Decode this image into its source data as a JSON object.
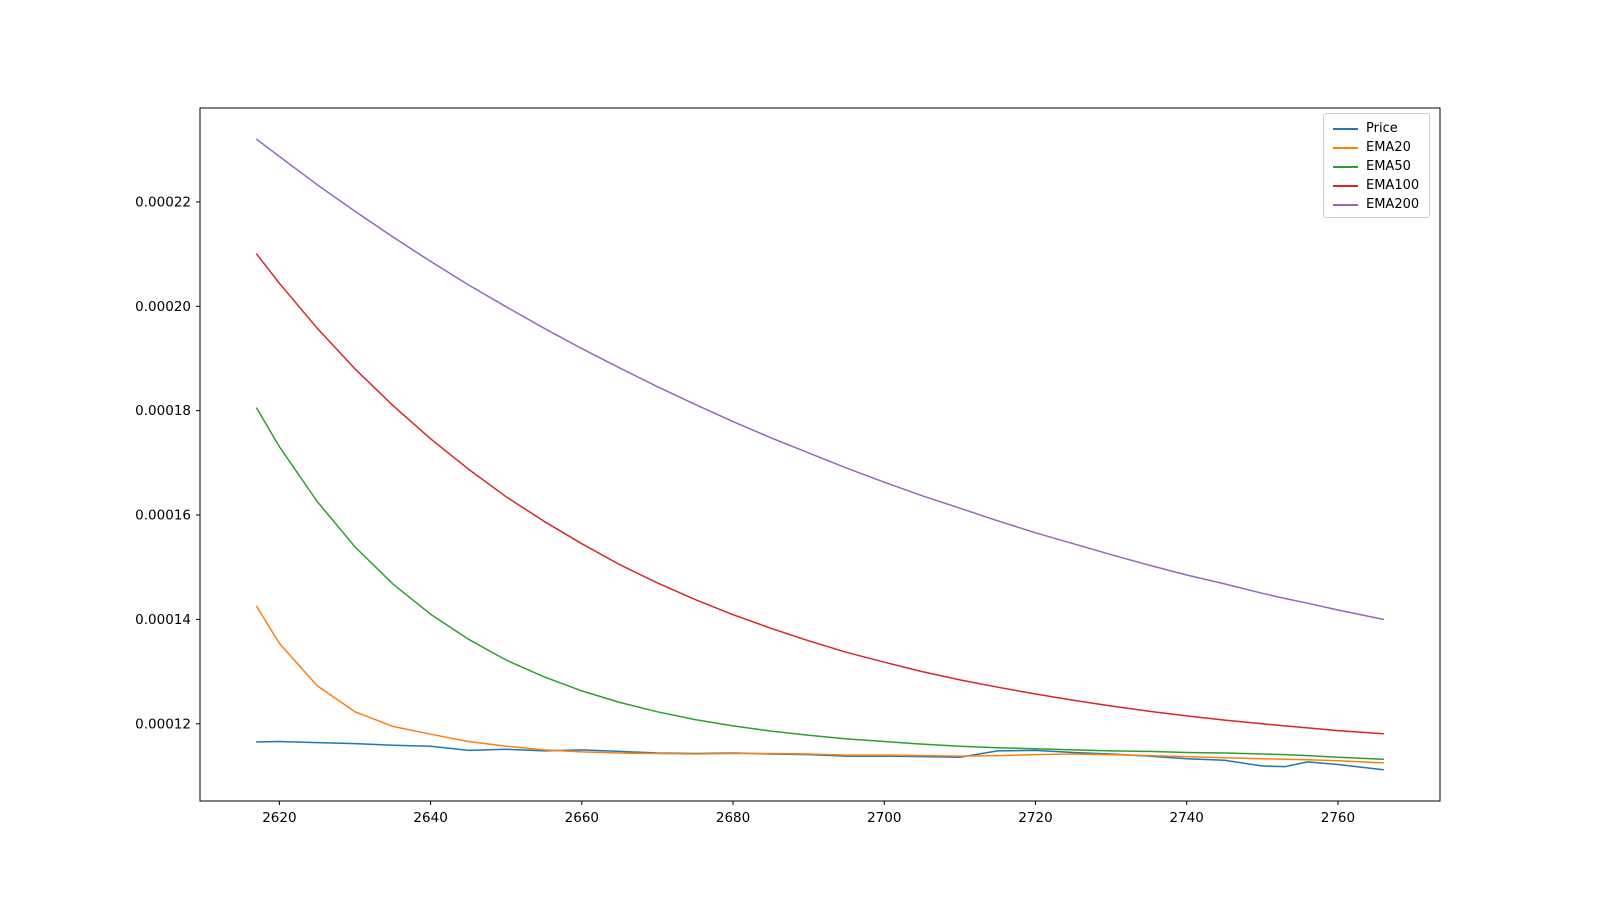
{
  "figure": {
    "background": "#ffffff",
    "frame_color": "#000000"
  },
  "chart_data": {
    "type": "line",
    "title": "",
    "xlabel": "",
    "ylabel": "",
    "grid": false,
    "legend_position": "upper right",
    "xlim": [
      2609.5,
      2773.5
    ],
    "ylim": [
      0.0001052,
      0.000238
    ],
    "x_ticks": {
      "values": [
        2620,
        2640,
        2660,
        2680,
        2700,
        2720,
        2740,
        2760
      ],
      "labels": [
        "2620",
        "2640",
        "2660",
        "2680",
        "2700",
        "2720",
        "2740",
        "2760"
      ]
    },
    "y_ticks": {
      "values": [
        0.00012,
        0.00014,
        0.00016,
        0.00018,
        0.0002,
        0.00022
      ],
      "labels": [
        "0.00012",
        "0.00014",
        "0.00016",
        "0.00018",
        "0.00020",
        "0.00022"
      ]
    },
    "x": [
      2617,
      2620,
      2625,
      2630,
      2635,
      2640,
      2645,
      2650,
      2655,
      2660,
      2665,
      2670,
      2675,
      2680,
      2685,
      2690,
      2695,
      2700,
      2705,
      2710,
      2715,
      2720,
      2725,
      2730,
      2735,
      2740,
      2745,
      2750,
      2753,
      2756,
      2760,
      2766
    ],
    "series": [
      {
        "name": "Price",
        "color": "#1f77b4",
        "values": [
          0.0001165,
          0.0001166,
          0.0001164,
          0.0001162,
          0.0001159,
          0.0001157,
          0.0001149,
          0.0001151,
          0.0001148,
          0.000115,
          0.0001147,
          0.0001144,
          0.0001143,
          0.0001144,
          0.0001142,
          0.0001141,
          0.0001138,
          0.0001138,
          0.0001137,
          0.0001136,
          0.0001148,
          0.0001149,
          0.0001145,
          0.0001142,
          0.0001138,
          0.0001133,
          0.000113,
          0.0001119,
          0.0001118,
          0.0001127,
          0.0001122,
          0.0001112
        ]
      },
      {
        "name": "EMA20",
        "color": "#ff7f0e",
        "values": [
          0.0001425,
          0.0001354,
          0.0001273,
          0.0001223,
          0.0001195,
          0.000118,
          0.0001166,
          0.0001157,
          0.000115,
          0.0001146,
          0.0001144,
          0.0001143,
          0.0001142,
          0.0001143,
          0.0001143,
          0.0001142,
          0.000114,
          0.000114,
          0.0001139,
          0.0001138,
          0.0001139,
          0.0001141,
          0.0001142,
          0.0001141,
          0.0001139,
          0.0001137,
          0.0001135,
          0.0001133,
          0.0001132,
          0.0001131,
          0.0001129,
          0.0001125
        ]
      },
      {
        "name": "EMA50",
        "color": "#2ca02c",
        "values": [
          0.0001805,
          0.0001731,
          0.0001626,
          0.0001539,
          0.0001468,
          0.000141,
          0.0001362,
          0.0001322,
          0.000129,
          0.0001263,
          0.0001241,
          0.0001223,
          0.0001208,
          0.0001196,
          0.0001186,
          0.0001178,
          0.0001171,
          0.0001166,
          0.0001161,
          0.0001157,
          0.0001154,
          0.0001152,
          0.000115,
          0.0001148,
          0.0001147,
          0.0001145,
          0.0001144,
          0.0001142,
          0.0001141,
          0.0001139,
          0.0001136,
          0.0001132
        ]
      },
      {
        "name": "EMA100",
        "color": "#d62728",
        "values": [
          0.00021,
          0.0002044,
          0.0001958,
          0.000188,
          0.000181,
          0.0001746,
          0.0001688,
          0.0001635,
          0.0001588,
          0.0001545,
          0.0001505,
          0.000147,
          0.0001438,
          0.0001409,
          0.0001383,
          0.0001359,
          0.0001337,
          0.0001318,
          0.00013,
          0.0001284,
          0.000127,
          0.0001257,
          0.0001245,
          0.0001234,
          0.0001224,
          0.0001215,
          0.0001207,
          0.00012,
          0.0001196,
          0.0001192,
          0.0001187,
          0.0001181
        ]
      },
      {
        "name": "EMA200",
        "color": "#9467bd",
        "values": [
          0.000232,
          0.0002287,
          0.0002233,
          0.0002182,
          0.0002133,
          0.0002086,
          0.0002041,
          0.0001999,
          0.0001958,
          0.0001919,
          0.0001882,
          0.0001846,
          0.0001812,
          0.0001779,
          0.0001748,
          0.0001719,
          0.000169,
          0.0001663,
          0.0001637,
          0.0001613,
          0.0001589,
          0.0001566,
          0.0001545,
          0.0001524,
          0.0001504,
          0.0001485,
          0.0001468,
          0.000145,
          0.000144,
          0.0001431,
          0.0001418,
          0.00014
        ]
      }
    ]
  }
}
